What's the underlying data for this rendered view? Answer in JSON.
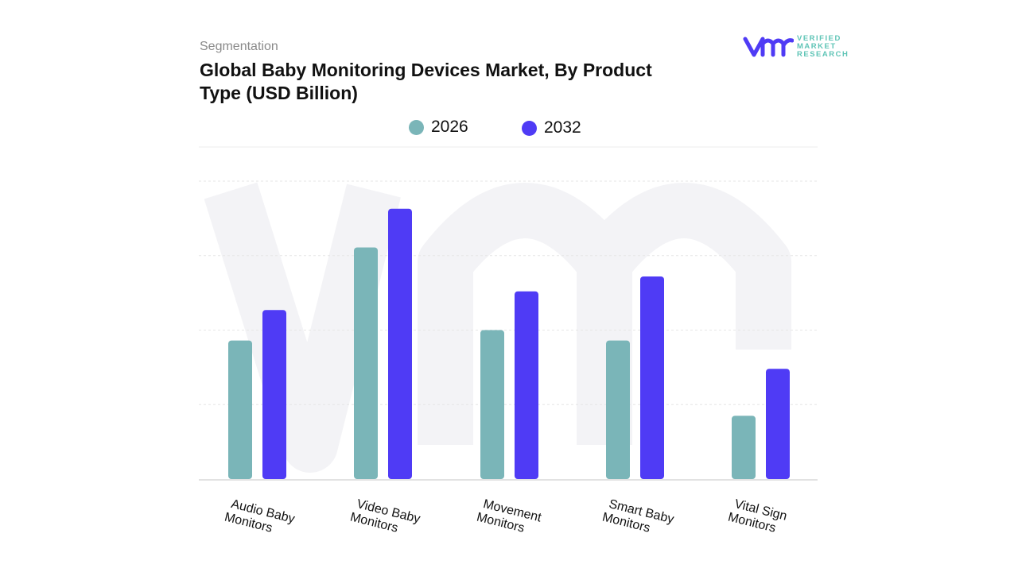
{
  "header": {
    "section": "Segmentation",
    "title": "Global Baby Monitoring Devices Market, By Product Type (USD Billion)"
  },
  "logo": {
    "text": [
      "VERIFIED",
      "MARKET",
      "RESEARCH"
    ],
    "mark": "vmr"
  },
  "chart_data": {
    "type": "bar",
    "title": "Global Baby Monitoring Devices Market, By Product Type (USD Billion)",
    "categories": [
      "Audio Baby Monitors",
      "Video Baby Monitors",
      "Movement Monitors",
      "Smart Baby Monitors",
      "Vital Sign Monitors"
    ],
    "series": [
      {
        "name": "2026",
        "color": "#7ab5b8",
        "values": [
          1.86,
          3.11,
          2.0,
          1.86,
          0.85
        ]
      },
      {
        "name": "2032",
        "color": "#4f3bf5",
        "values": [
          2.27,
          3.63,
          2.52,
          2.72,
          1.48
        ]
      }
    ],
    "ylim": [
      0,
      4
    ],
    "grid": true,
    "legend": "top",
    "xlabel": "",
    "ylabel": ""
  }
}
